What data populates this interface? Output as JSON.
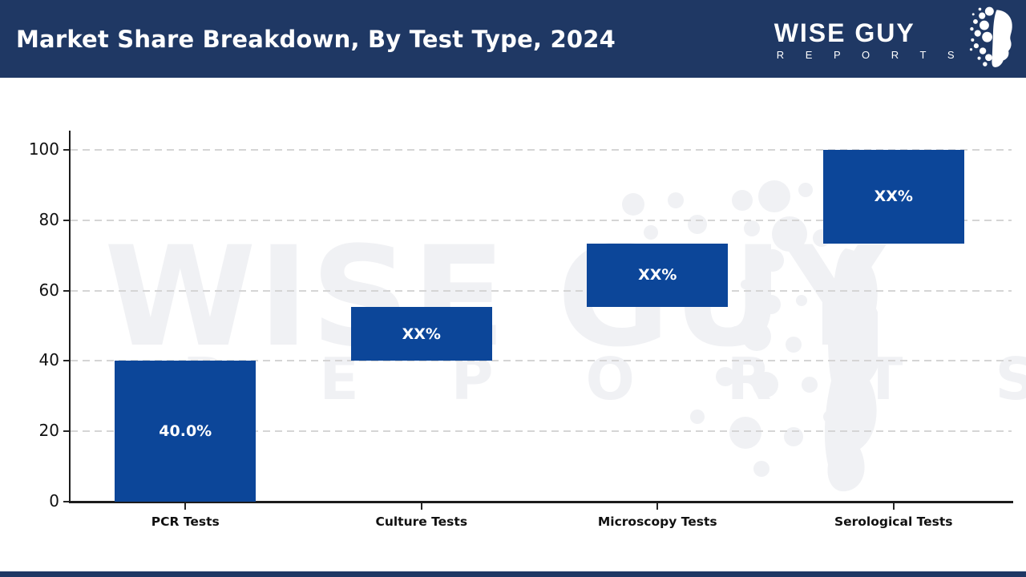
{
  "header": {
    "title": "Market Share Breakdown, By Test Type, 2024",
    "bg_color": "#1F3864",
    "logo": {
      "line1": "WISE GUY",
      "line2": "R E P O R T S"
    }
  },
  "watermark": {
    "line1": "WISE GUY",
    "line2": "R E P O R T S",
    "color": "#F0F1F4"
  },
  "chart_data": {
    "type": "bar",
    "subtype": "waterfall",
    "title": "Market Share Breakdown, By Test Type, 2024",
    "categories": [
      "PCR Tests",
      "Culture Tests",
      "Microscopy Tests",
      "Serological Tests"
    ],
    "segments": [
      {
        "category": "PCR Tests",
        "start": 0,
        "end": 40,
        "label": "40.0%"
      },
      {
        "category": "Culture Tests",
        "start": 40,
        "end": 55.4,
        "label": "XX%"
      },
      {
        "category": "Microscopy Tests",
        "start": 55.4,
        "end": 73.4,
        "label": "XX%"
      },
      {
        "category": "Serological Tests",
        "start": 73.4,
        "end": 100,
        "label": "XX%"
      }
    ],
    "xlabel": "",
    "ylabel": "",
    "ylim": [
      0,
      105
    ],
    "yticks": [
      0,
      20,
      40,
      60,
      80,
      100
    ],
    "grid": "dashed-horizontal",
    "legend": "none",
    "bar_color": "#0C4699",
    "bar_label_color": "#FFFFFF",
    "axis_color": "#1C1C1C",
    "tick_label_color": "#111111"
  },
  "footer": {
    "bg_color": "#1F3864"
  }
}
